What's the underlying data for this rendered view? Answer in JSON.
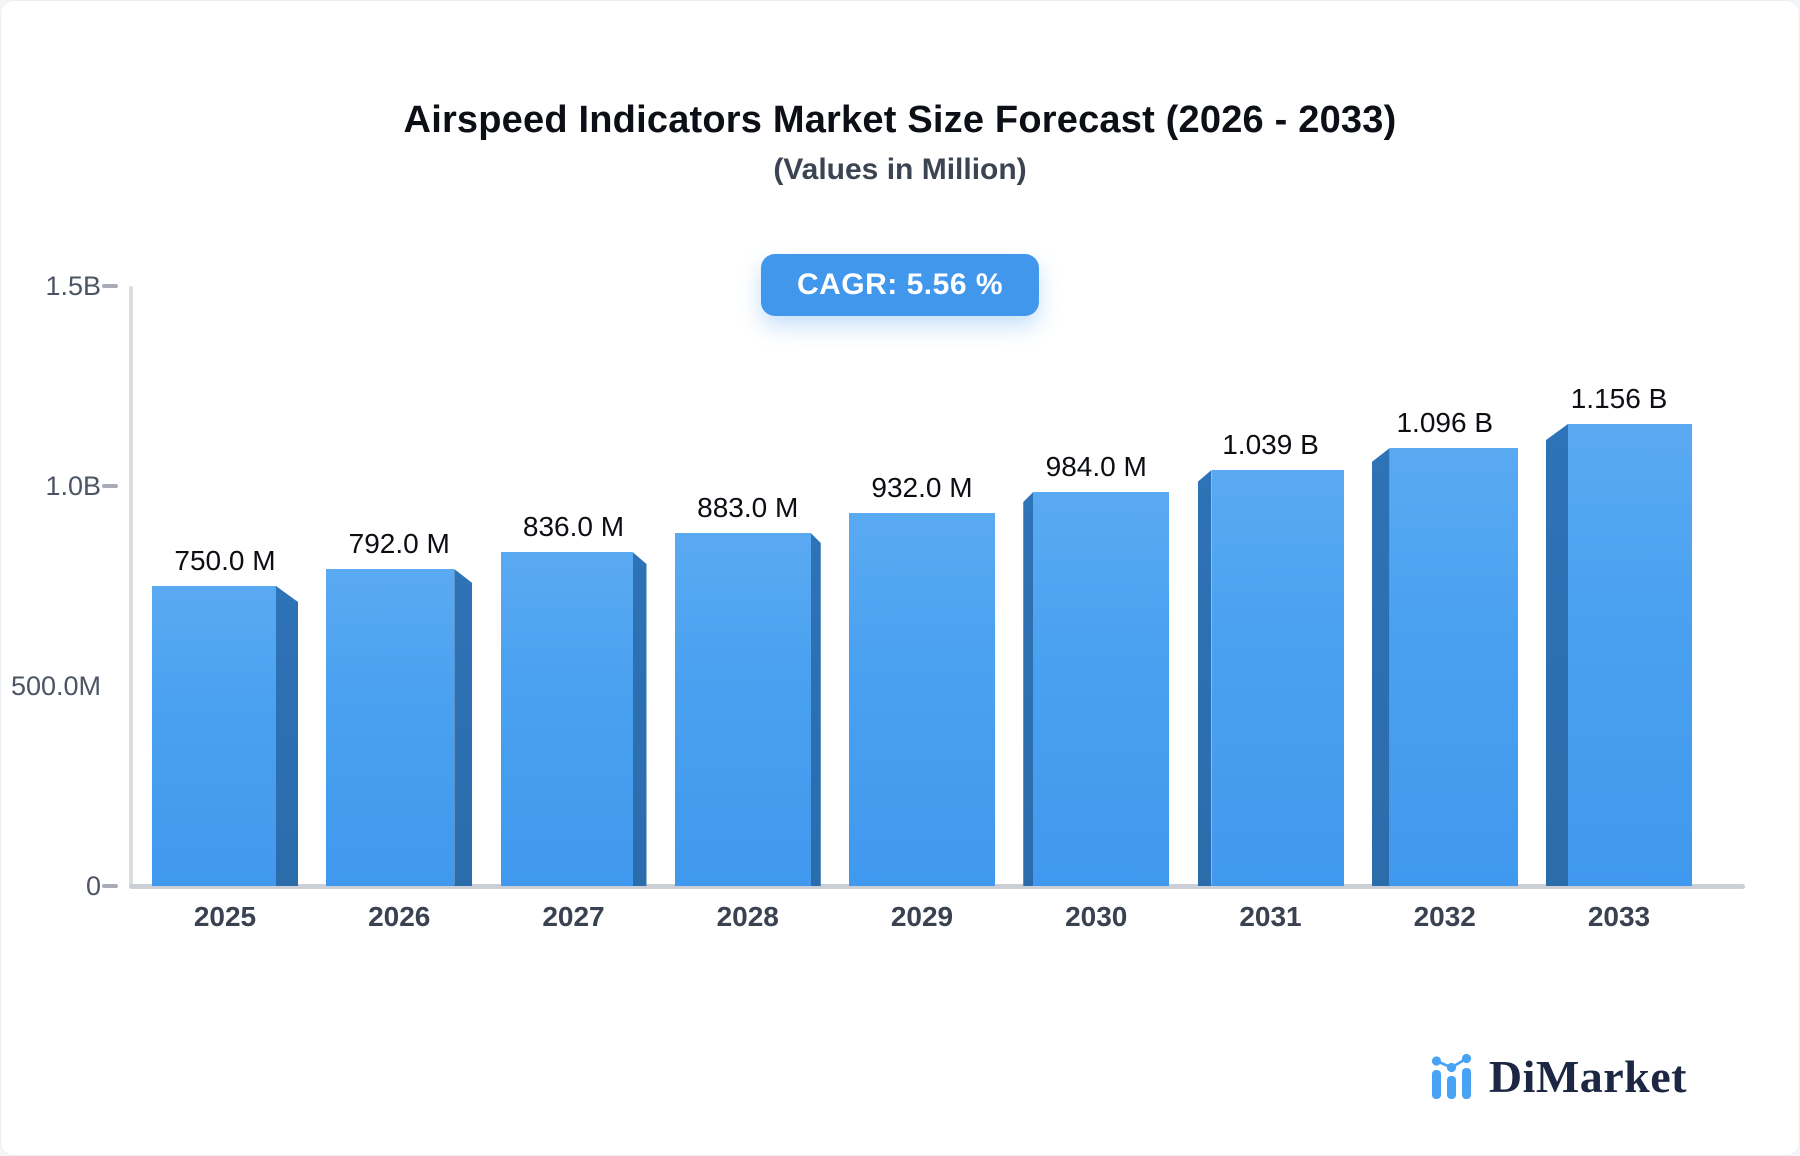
{
  "header": {
    "title": "Airspeed Indicators Market Size Forecast (2026 - 2033)",
    "subtitle": "(Values in Million)"
  },
  "badge": {
    "label": "CAGR: 5.56 %"
  },
  "colors": {
    "accent": "#4197ec",
    "bar_face_top": "#5aaaf2",
    "bar_face_bottom": "#4099ee",
    "bar_side": "#2e73b7",
    "axis_line": "#dcdde1",
    "baseline": "#cdcfd6",
    "logo_navy": "#1b2743",
    "logo_blue": "#4aa2f5"
  },
  "chart_data": {
    "type": "bar",
    "title": "Airspeed Indicators Market Size Forecast (2026 - 2033)",
    "subtitle": "(Values in Million)",
    "categories": [
      "2025",
      "2026",
      "2027",
      "2028",
      "2029",
      "2030",
      "2031",
      "2032",
      "2033"
    ],
    "values": [
      750,
      792,
      836,
      883,
      932,
      984,
      1039,
      1096,
      1156
    ],
    "value_labels": [
      "750.0 M",
      "792.0 M",
      "836.0 M",
      "883.0 M",
      "932.0 M",
      "984.0 M",
      "1.039 B",
      "1.096 B",
      "1.156 B"
    ],
    "units": "millions",
    "ylim": [
      0,
      1500
    ],
    "y_tick_labels": [
      "1.5B",
      "1.0B",
      "500.0M",
      "0"
    ],
    "grid": false,
    "legend": false,
    "style": "3d-extruded-bars"
  },
  "logo": {
    "text": "DiMarket"
  }
}
